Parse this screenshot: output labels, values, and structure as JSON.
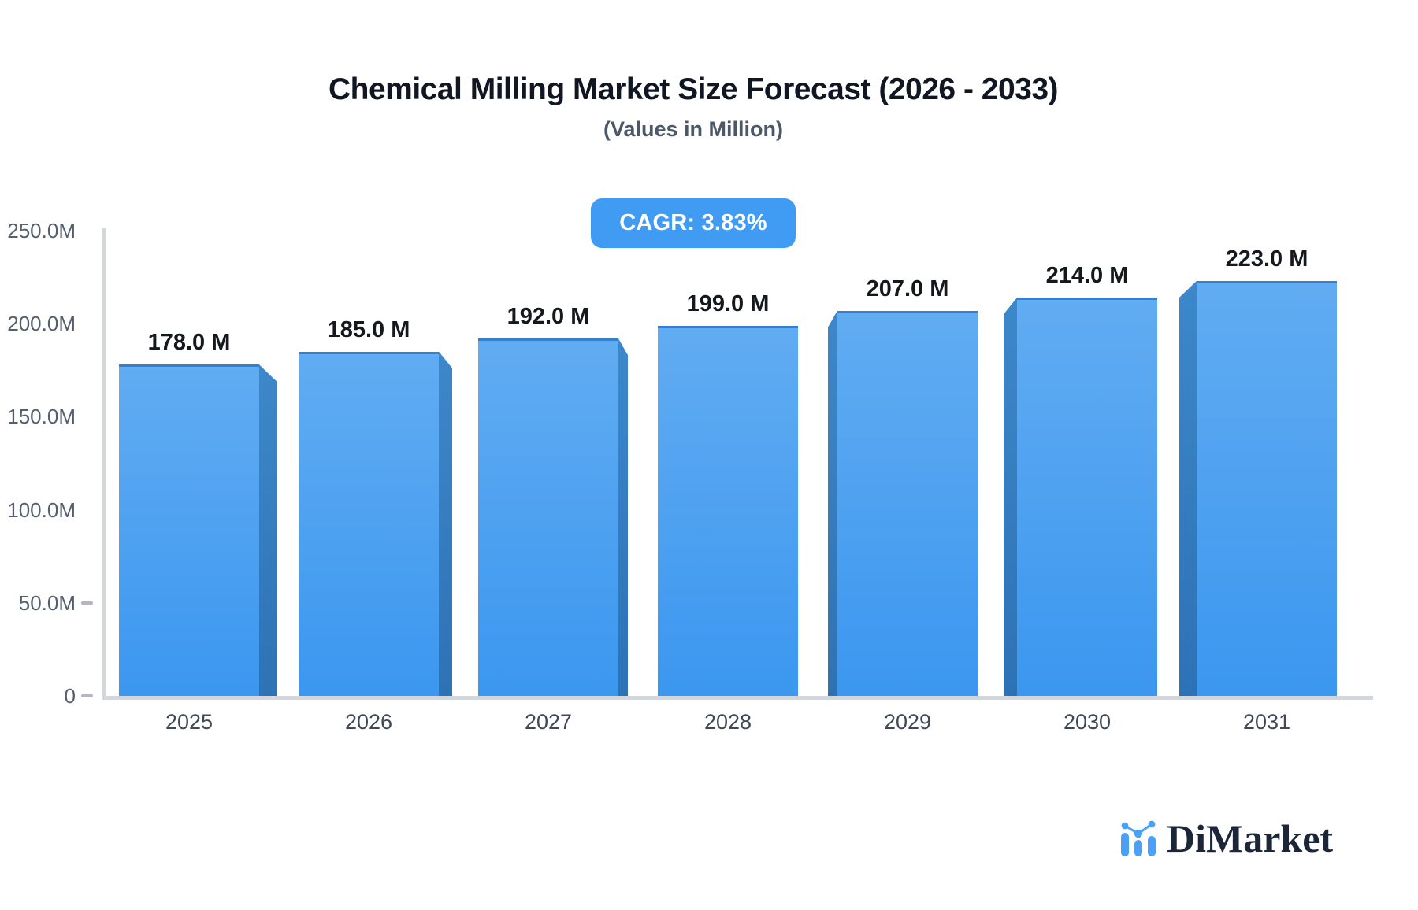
{
  "chart_data": {
    "type": "bar",
    "title": "Chemical Milling Market Size Forecast (2026 - 2033)",
    "subtitle": "(Values in Million)",
    "cagr_label": "CAGR: 3.83%",
    "categories": [
      "2025",
      "2026",
      "2027",
      "2028",
      "2029",
      "2030",
      "2031"
    ],
    "values": [
      178,
      185,
      192,
      199,
      207,
      214,
      223
    ],
    "value_labels": [
      "178.0 M",
      "185.0 M",
      "192.0 M",
      "199.0 M",
      "207.0 M",
      "214.0 M",
      "223.0 M"
    ],
    "ylim": [
      0,
      250
    ],
    "yticks": [
      {
        "label": "250.0M",
        "value": 250,
        "dash": false
      },
      {
        "label": "200.0M",
        "value": 200,
        "dash": false
      },
      {
        "label": "150.0M",
        "value": 150,
        "dash": false
      },
      {
        "label": "100.0M",
        "value": 100,
        "dash": false
      },
      {
        "label": "50.0M",
        "value": 50,
        "dash": true
      },
      {
        "label": "0",
        "value": 0,
        "dash": true
      }
    ],
    "grid": false,
    "legend": "none"
  },
  "colors": {
    "bar_face_top": "#61acf2",
    "bar_face_bottom": "#3b97ef",
    "bar_top_edge": "#3181cf",
    "bar_side_top": "#3d88ca",
    "bar_side_bottom": "#2d72b4",
    "badge_bg": "#3f9cf2",
    "axis": "#d3d6db",
    "logo_blue": "#4aa0f5",
    "logo_text_color": "#1c2639"
  },
  "logo": {
    "text": "DiMarket"
  }
}
